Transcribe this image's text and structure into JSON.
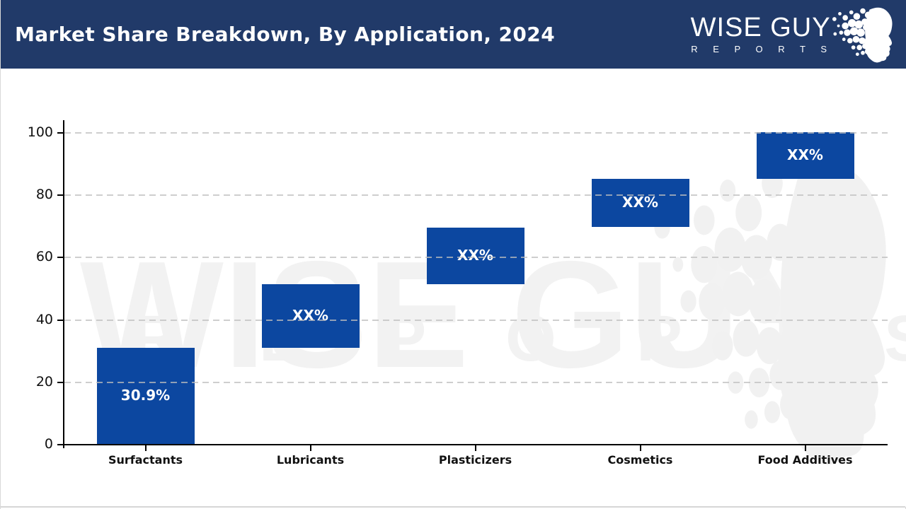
{
  "header": {
    "logo": {
      "line1": "WISE GUY",
      "line2": "R E P O R T S"
    }
  },
  "watermark": {
    "line1": "WISE GUY",
    "line2": "R E P O R T S"
  },
  "chart_data": {
    "type": "bar",
    "subtype": "waterfall-floating-bars",
    "title": "Market Share Breakdown, By Application, 2024",
    "categories": [
      "Surfactants",
      "Lubricants",
      "Plasticizers",
      "Cosmetics",
      "Food Additives"
    ],
    "segments": [
      {
        "category": "Surfactants",
        "start": 0,
        "end": 30.9,
        "label": "30.9%"
      },
      {
        "category": "Lubricants",
        "start": 30.9,
        "end": 51.2,
        "label": "XX%"
      },
      {
        "category": "Plasticizers",
        "start": 51.2,
        "end": 69.5,
        "label": "XX%"
      },
      {
        "category": "Cosmetics",
        "start": 69.5,
        "end": 85.0,
        "label": "XX%"
      },
      {
        "category": "Food Additives",
        "start": 85.0,
        "end": 100.0,
        "label": "XX%"
      }
    ],
    "yticks": [
      0,
      20,
      40,
      60,
      80,
      100
    ],
    "ylim": [
      0,
      104
    ],
    "xlabel": "",
    "ylabel": "",
    "grid": "horizontal-dashed-over-bars",
    "legend": "none"
  },
  "colors": {
    "header_bg": "#213A69",
    "bar_fill": "#0C47A0",
    "bar_label": "#ffffff",
    "gridline": "#d9d9d9",
    "axis": "#000000",
    "watermark": "#f2f2f2",
    "title_text": "#ffffff"
  }
}
